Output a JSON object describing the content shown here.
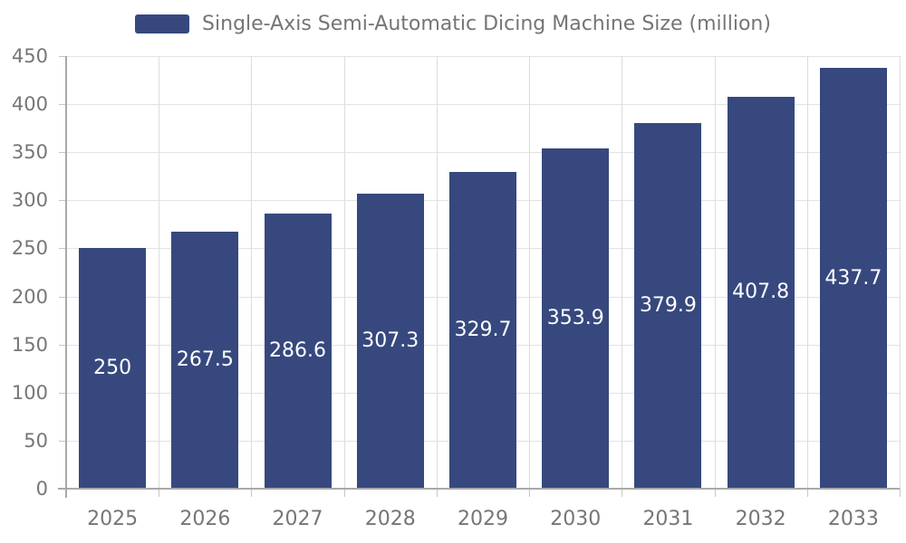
{
  "legend": {
    "label": "Single-Axis Semi-Automatic Dicing Machine Size (million)",
    "swatch_color": "#36487E"
  },
  "chart_data": {
    "type": "bar",
    "title": "Single-Axis Semi-Automatic Dicing Machine Size (million)",
    "series_name": "Single-Axis Semi-Automatic Dicing Machine Size (million)",
    "categories": [
      "2025",
      "2026",
      "2027",
      "2028",
      "2029",
      "2030",
      "2031",
      "2032",
      "2033"
    ],
    "values": [
      250,
      267.5,
      286.6,
      307.3,
      329.7,
      353.9,
      379.9,
      407.8,
      437.7
    ],
    "value_labels": [
      "250",
      "267.5",
      "286.6",
      "307.3",
      "329.7",
      "353.9",
      "379.9",
      "407.8",
      "437.7"
    ],
    "ytick_labels": [
      "0",
      "50",
      "100",
      "150",
      "200",
      "250",
      "300",
      "350",
      "400",
      "450"
    ],
    "ylim": [
      0,
      450
    ],
    "ytick_step": 50,
    "xlabel": "",
    "ylabel": "",
    "grid": true,
    "legend_position": "top",
    "colors": {
      "bar": "#36487E",
      "value_label": "#ffffff",
      "axis_text": "#767676",
      "grid_line": "#e2e2e2",
      "axis_line": "#a9a9a9"
    }
  }
}
